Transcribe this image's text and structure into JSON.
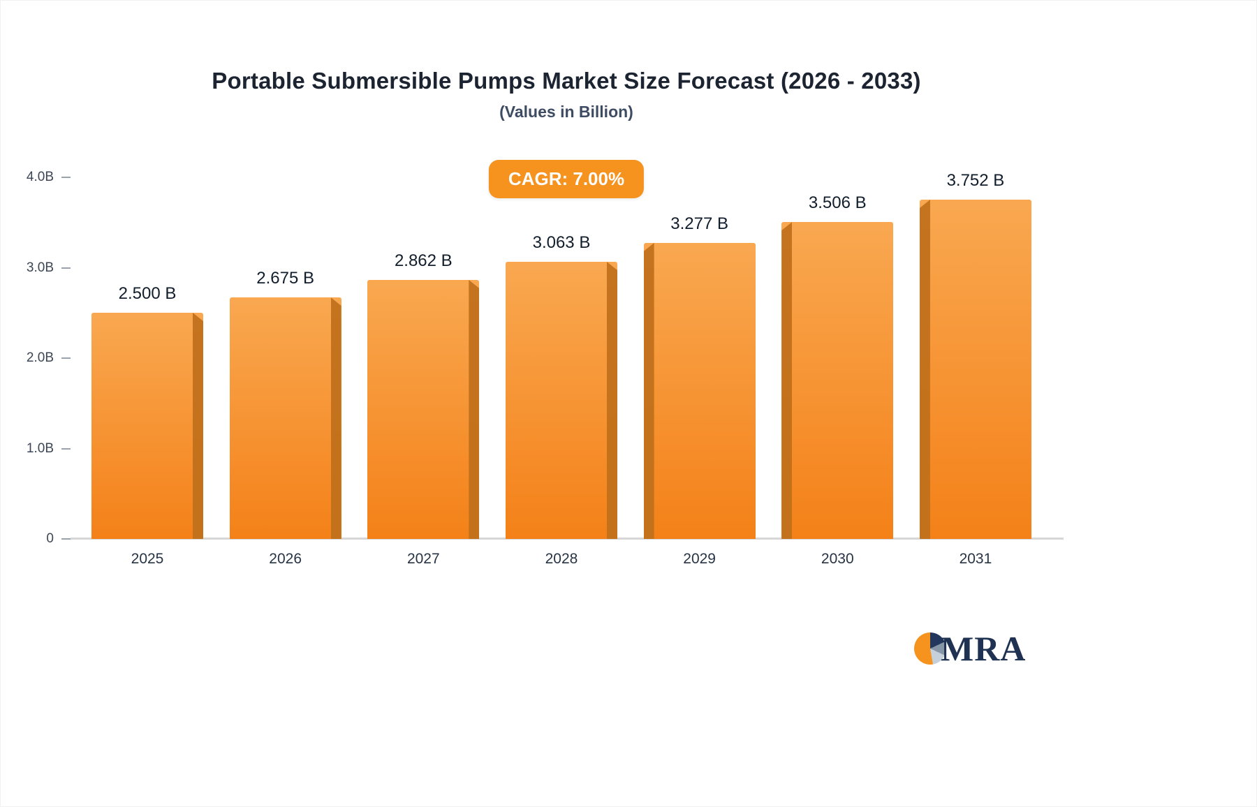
{
  "chart_data": {
    "type": "bar",
    "title": "Portable Submersible Pumps Market Size Forecast (2026 - 2033)",
    "subtitle": "(Values in Billion)",
    "cagr_label": "CAGR: 7.00%",
    "categories": [
      "2025",
      "2026",
      "2027",
      "2028",
      "2029",
      "2030",
      "2031"
    ],
    "values": [
      2.5,
      2.675,
      2.862,
      3.063,
      3.277,
      3.506,
      3.752
    ],
    "value_labels": [
      "2.500 B",
      "2.675 B",
      "2.862 B",
      "3.063 B",
      "3.277 B",
      "3.506 B",
      "3.752 B"
    ],
    "xlabel": "",
    "ylabel": "",
    "ylim": [
      0,
      4.0
    ],
    "y_ticks": [
      {
        "label": "4.0B",
        "value": 4.0
      },
      {
        "label": "3.0B",
        "value": 3.0
      },
      {
        "label": "2.0B",
        "value": 2.0
      },
      {
        "label": "1.0B",
        "value": 1.0
      },
      {
        "label": "0",
        "value": 0
      }
    ],
    "grid": false,
    "legend": "none",
    "bar_shadow_sides": [
      "right",
      "right",
      "right",
      "right",
      "left",
      "left",
      "left"
    ],
    "colors": {
      "bar_top": "#F9A851",
      "bar_bottom": "#F48118",
      "bar_side": "#C1701B",
      "badge_bg": "#F6921E",
      "badge_text": "#FFFFFF",
      "title_text": "#1B2430",
      "subtitle_text": "#3E4C63",
      "axis_text": "#3C4654",
      "value_text": "#121E2C",
      "baseline": "#D6D6D6"
    },
    "logo_text": "MRA"
  }
}
